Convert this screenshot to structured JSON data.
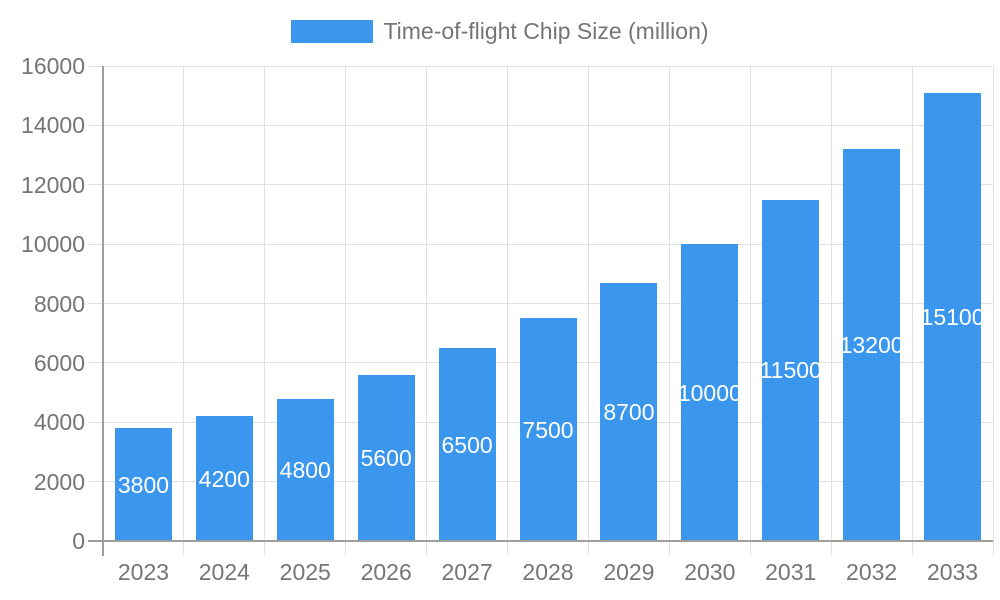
{
  "legend": {
    "label": "Time-of-flight Chip Size (million)"
  },
  "chart_data": {
    "type": "bar",
    "title": "Time-of-flight Chip Size (million)",
    "series_name": "Time-of-flight Chip Size (million)",
    "categories": [
      "2023",
      "2024",
      "2025",
      "2026",
      "2027",
      "2028",
      "2029",
      "2030",
      "2031",
      "2032",
      "2033"
    ],
    "values": [
      3800,
      4200,
      4800,
      5600,
      6500,
      7500,
      8700,
      10000,
      11500,
      13200,
      15100
    ],
    "data_labels": [
      3800,
      4200,
      4800,
      5600,
      6500,
      7500,
      8700,
      10000,
      11500,
      13200,
      15100
    ],
    "xlabel": "",
    "ylabel": "",
    "ylim": [
      0,
      16000
    ],
    "yticks": [
      0,
      2000,
      4000,
      6000,
      8000,
      10000,
      12000,
      14000,
      16000
    ],
    "grid": true,
    "legend_position": "top",
    "data_label_position": "inside-center",
    "colors": {
      "bar": "#3B97EE",
      "grid": "#E0E0E0",
      "axis": "#9E9E9E",
      "text": "#757575",
      "data_label": "#FFFFFF",
      "background": "#FFFFFF"
    }
  }
}
